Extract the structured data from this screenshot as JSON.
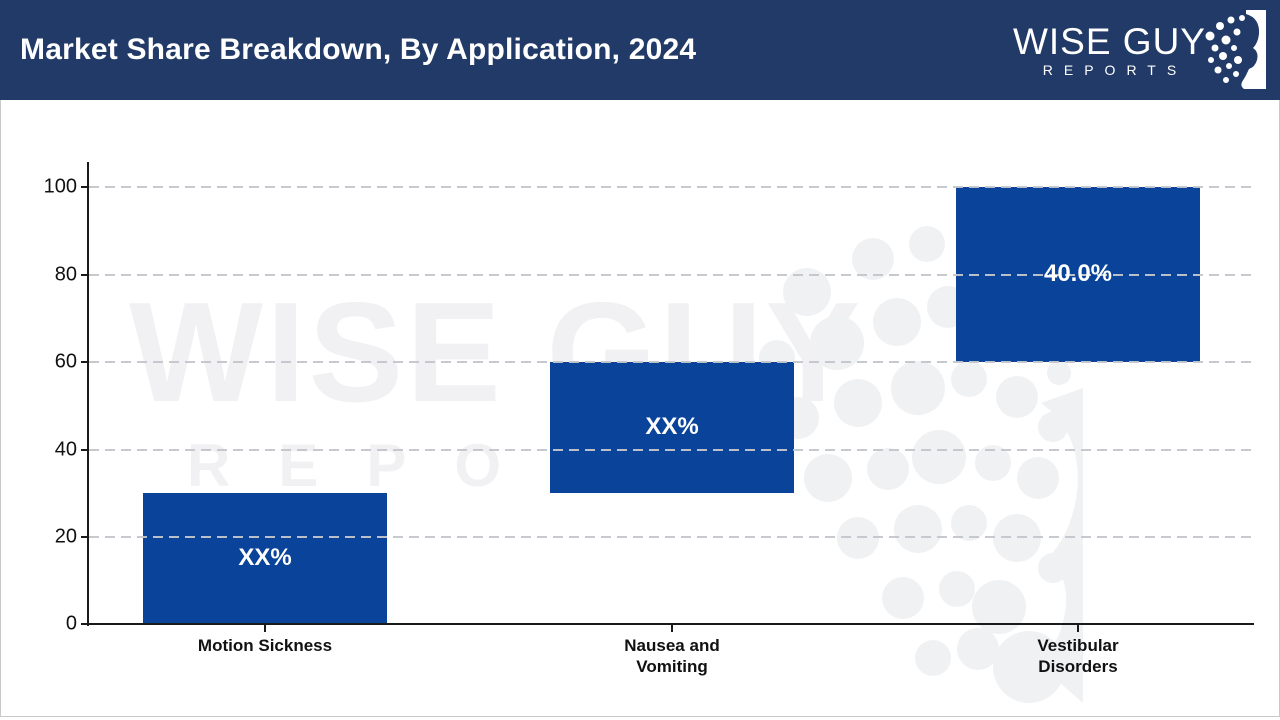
{
  "header": {
    "title": "Market Share Breakdown, By Application, 2024",
    "logo": {
      "line1": "WISE GUY",
      "line2": "REPORTS"
    }
  },
  "watermark": {
    "line1": "WISE GUY",
    "line2": "REPORTS"
  },
  "colors": {
    "header_bg": "#213a67",
    "bar": "#09439a",
    "bar_label_text": "#ffffff",
    "watermark": "#f1f1f3",
    "gridline": "#c3c6cc",
    "axis": "#1a1a1a",
    "panel_border": "#c9c9c9"
  },
  "chart_data": {
    "type": "bar",
    "variant": "floating-stacked-segments",
    "title": "Market Share Breakdown, By Application, 2024",
    "categories": [
      "Motion Sickness",
      "Nausea and\nVomiting",
      "Vestibular\nDisorders"
    ],
    "segments": [
      {
        "category": "Motion Sickness",
        "start": 0,
        "end": 30,
        "label": "XX%"
      },
      {
        "category": "Nausea and Vomiting",
        "start": 30,
        "end": 60,
        "label": "XX%"
      },
      {
        "category": "Vestibular Disorders",
        "start": 60,
        "end": 100,
        "label": "40.0%"
      }
    ],
    "ylim": [
      0,
      100
    ],
    "yticks": [
      0,
      20,
      40,
      60,
      80,
      100
    ],
    "xlabel": "",
    "ylabel": "",
    "grid": "dashed-horizontal-over-bars",
    "legend": "none"
  }
}
